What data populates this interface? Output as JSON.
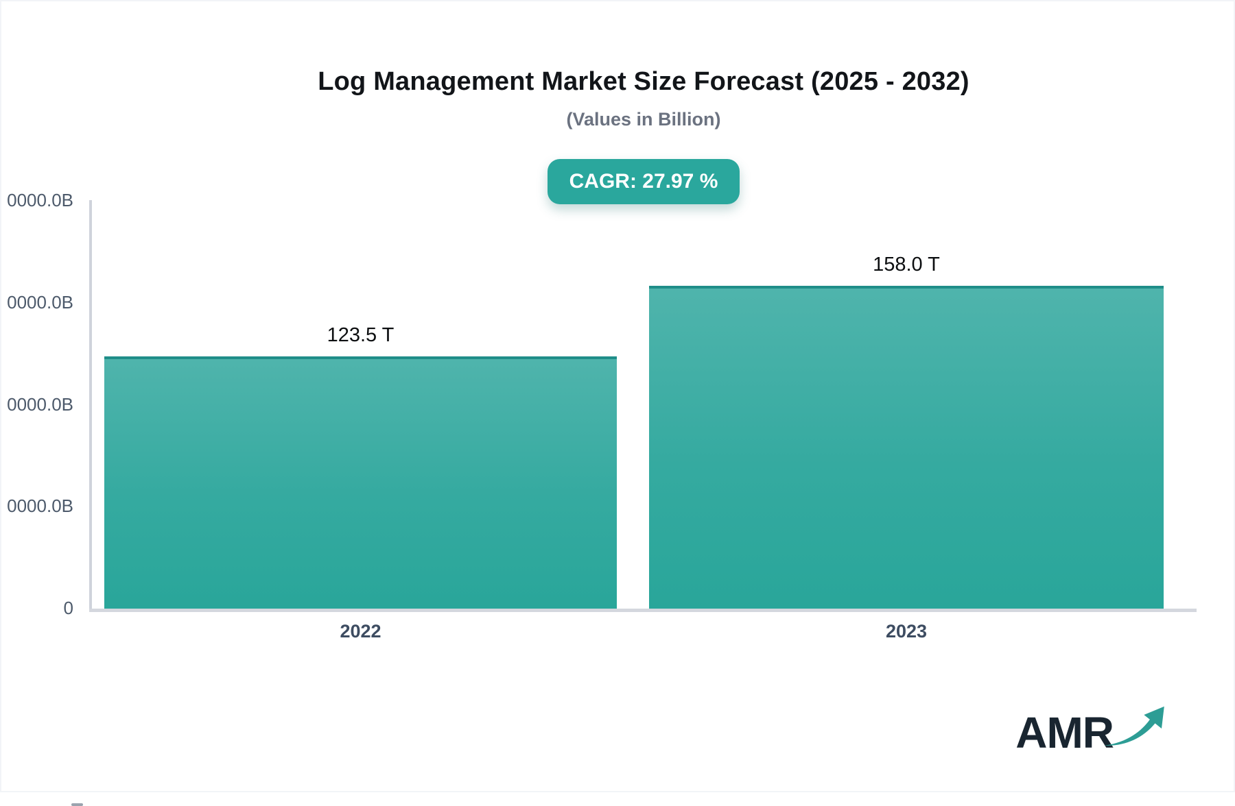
{
  "header": {
    "title": "Log Management Market Size Forecast (2025 - 2032)",
    "subtitle": "(Values in Billion)",
    "cagr_badge": "CAGR: 27.97 %"
  },
  "chart_data": {
    "type": "bar",
    "title": "Log Management Market Size Forecast (2025 - 2032)",
    "subtitle": "(Values in Billion)",
    "categories": [
      "2022",
      "2023"
    ],
    "values": [
      123.5,
      158.0
    ],
    "unit": "T",
    "value_labels": [
      "123.5 T",
      "158.0 T"
    ],
    "cagr_percent": 27.97,
    "y_axis": {
      "visible_tick_labels": [
        "0000.0B",
        "0000.0B",
        "0000.0B",
        "0000.0B",
        "0"
      ],
      "ylim": [
        0,
        200
      ],
      "grid": false,
      "note": "tick labels truncated at left image edge"
    },
    "legend_position": "none",
    "colors": {
      "bar_gradient_top": "#4fb4ac",
      "bar_gradient_bottom": "#29a69a",
      "bar_top_edge": "#1f8e89",
      "badge_background": "#2aa79d",
      "axis_line": "#cfd3db",
      "tick_label": "#4d5a6b",
      "category_label": "#3d4c61",
      "title": "#121519",
      "subtitle": "#6b7280"
    }
  },
  "logo": {
    "text": "AMR",
    "icon": "growth-arrow-icon",
    "arrow_color": "#2d9d95",
    "text_color": "#192530"
  }
}
